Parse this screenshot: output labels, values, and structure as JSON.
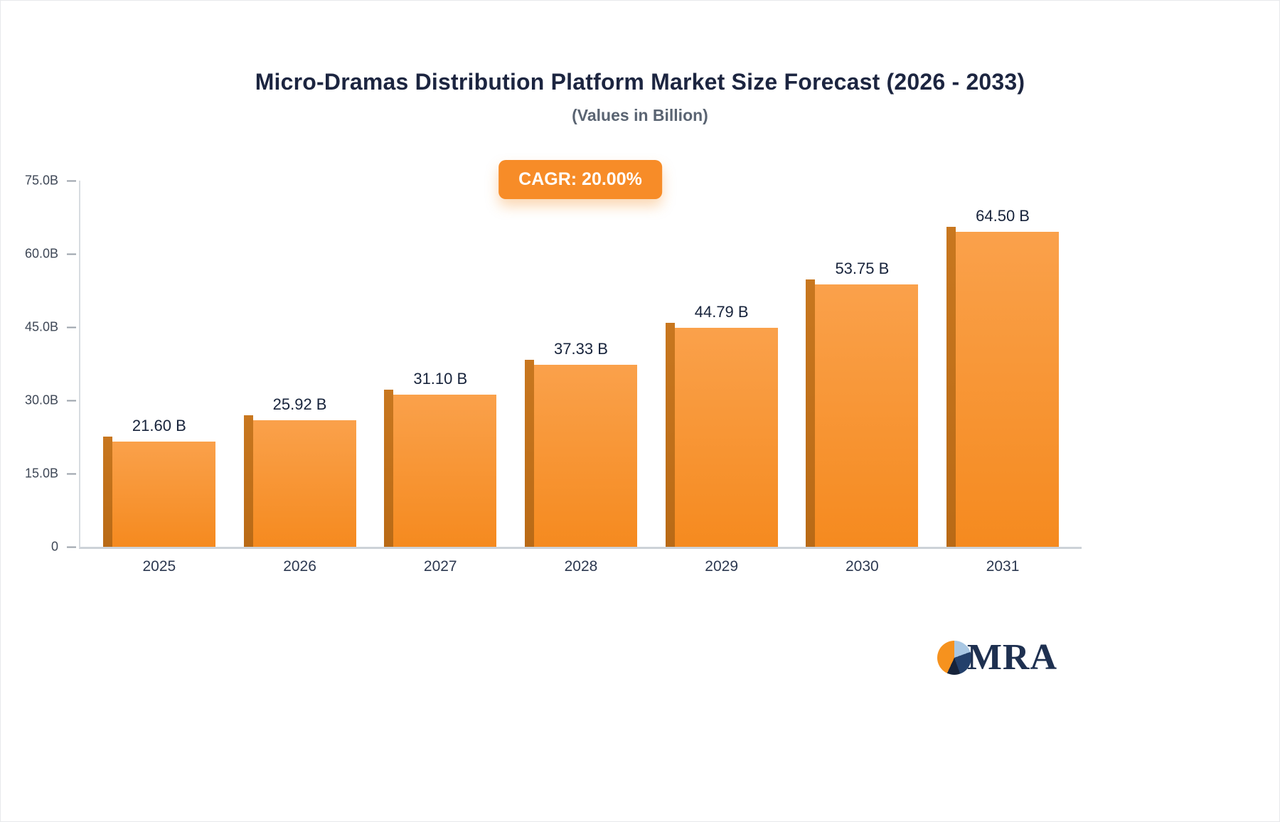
{
  "title": "Micro-Dramas Distribution Platform Market Size Forecast (2026 - 2033)",
  "subtitle": "(Values in Billion)",
  "badge": {
    "label": "CAGR: 20.00%",
    "bg_color": "#F78C28",
    "text_color": "#FFFFFF"
  },
  "logo": {
    "text": "MRA",
    "colors": {
      "orange": "#F6921E",
      "light_blue": "#A9C7E3",
      "navy": "#23406B",
      "dark": "#16233A",
      "text": "#1E3050"
    }
  },
  "chart_data": {
    "type": "bar",
    "categories": [
      "2025",
      "2026",
      "2027",
      "2028",
      "2029",
      "2030",
      "2031"
    ],
    "values": [
      21.6,
      25.92,
      31.1,
      37.33,
      44.79,
      53.75,
      64.5
    ],
    "value_labels": [
      "21.60 B",
      "25.92 B",
      "31.10 B",
      "37.33 B",
      "44.79 B",
      "53.75 B",
      "64.50 B"
    ],
    "title": "Micro-Dramas Distribution Platform Market Size Forecast (2026 - 2033)",
    "xlabel": "",
    "ylabel": "",
    "ylim": [
      0,
      75
    ],
    "yticks": [
      "75.0B",
      "60.0B",
      "45.0B",
      "30.0B",
      "15.0B",
      "0"
    ],
    "ytick_values": [
      75,
      60,
      45,
      30,
      15,
      0
    ],
    "grid": false,
    "legend": false,
    "bar_color": "#F78E2B",
    "bar_side_color": "#BE6F1B"
  }
}
